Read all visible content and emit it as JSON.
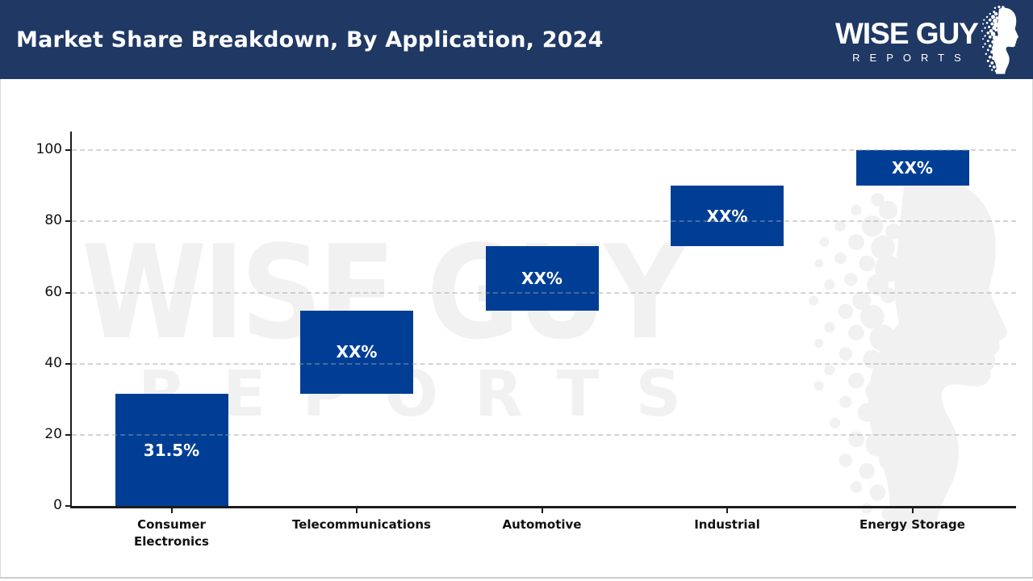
{
  "header": {
    "title": "Market Share Breakdown, By Application, 2024",
    "logo": {
      "wordmark": "WISE GUY",
      "subtext": "REPORTS"
    }
  },
  "watermark": {
    "wordmark": "WISE GUY",
    "subtext": "REPORTS"
  },
  "colors": {
    "header_bg": "#1F3864",
    "bar_fill": "#003E96",
    "bar_label": "#FFFFFF",
    "axis": "#1C1C1C",
    "gridline": "#D6D6D6",
    "watermark": "#F1F1F2",
    "page_bg": "#FFFFFF",
    "border": "#CCCCCC"
  },
  "chart_data": {
    "type": "bar",
    "subtype": "waterfall",
    "title": "Market Share Breakdown, By Application, 2024",
    "categories": [
      "Consumer Electronics",
      "Telecommunications",
      "Automotive",
      "Industrial",
      "Energy Storage"
    ],
    "series": [
      {
        "name": "Market Share (%)",
        "starts": [
          0,
          31.5,
          55,
          73,
          90
        ],
        "ends": [
          31.5,
          55,
          73,
          90,
          100
        ],
        "segment_values": [
          31.5,
          23.5,
          18,
          17,
          10
        ]
      }
    ],
    "bar_labels": [
      "31.5%",
      "XX%",
      "XX%",
      "XX%",
      "XX%"
    ],
    "xlabel": "",
    "ylabel": "",
    "ylim": [
      0,
      100
    ],
    "yticks": [
      0,
      20,
      40,
      60,
      80,
      100
    ],
    "grid": "horizontal-dashed",
    "legend": "none"
  }
}
